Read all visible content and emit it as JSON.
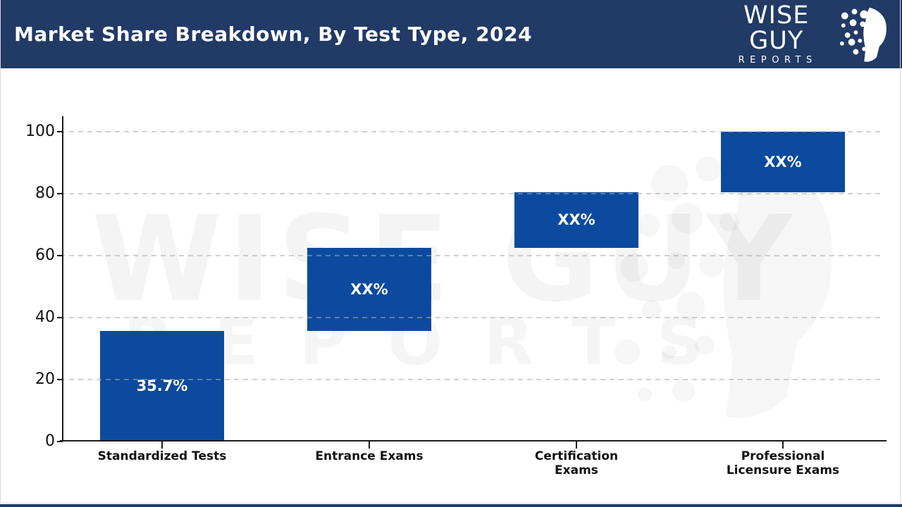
{
  "header": {
    "title": "Market Share Breakdown, By Test Type, 2024",
    "logo": {
      "line1": "WISE GUY",
      "line2": "REPORTS"
    }
  },
  "watermark": {
    "line1": "WISE GUY",
    "line2": "REPORTS"
  },
  "accent_colors": {
    "header_navy": "#213a66",
    "bar_blue": "#0b4a9e"
  },
  "chart_data": {
    "type": "bar",
    "variant": "waterfall",
    "title": "Market Share Breakdown, By Test Type, 2024",
    "categories": [
      "Standardized Tests",
      "Entrance Exams",
      "Certification Exams",
      "Professional Licensure Exams"
    ],
    "category_display_lines": [
      [
        "Standardized Tests"
      ],
      [
        "Entrance Exams"
      ],
      [
        "Certification",
        "Exams"
      ],
      [
        "Professional",
        "Licensure Exams"
      ]
    ],
    "segments": [
      {
        "category": "Standardized Tests",
        "start": 0,
        "end": 35.7,
        "label": "35.7%"
      },
      {
        "category": "Entrance Exams",
        "start": 35.7,
        "end": 62.5,
        "label": "XX%"
      },
      {
        "category": "Certification Exams",
        "start": 62.5,
        "end": 80.5,
        "label": "XX%"
      },
      {
        "category": "Professional Licensure Exams",
        "start": 80.5,
        "end": 100,
        "label": "XX%"
      }
    ],
    "xlabel": "",
    "ylabel": "",
    "ylim": [
      0,
      105
    ],
    "yticks": [
      0,
      20,
      40,
      60,
      80,
      100
    ],
    "grid": true,
    "gridstyle": "dashed",
    "legend": "none",
    "bar_color": "#0b4a9e",
    "value_label_color": "#ffffff"
  }
}
